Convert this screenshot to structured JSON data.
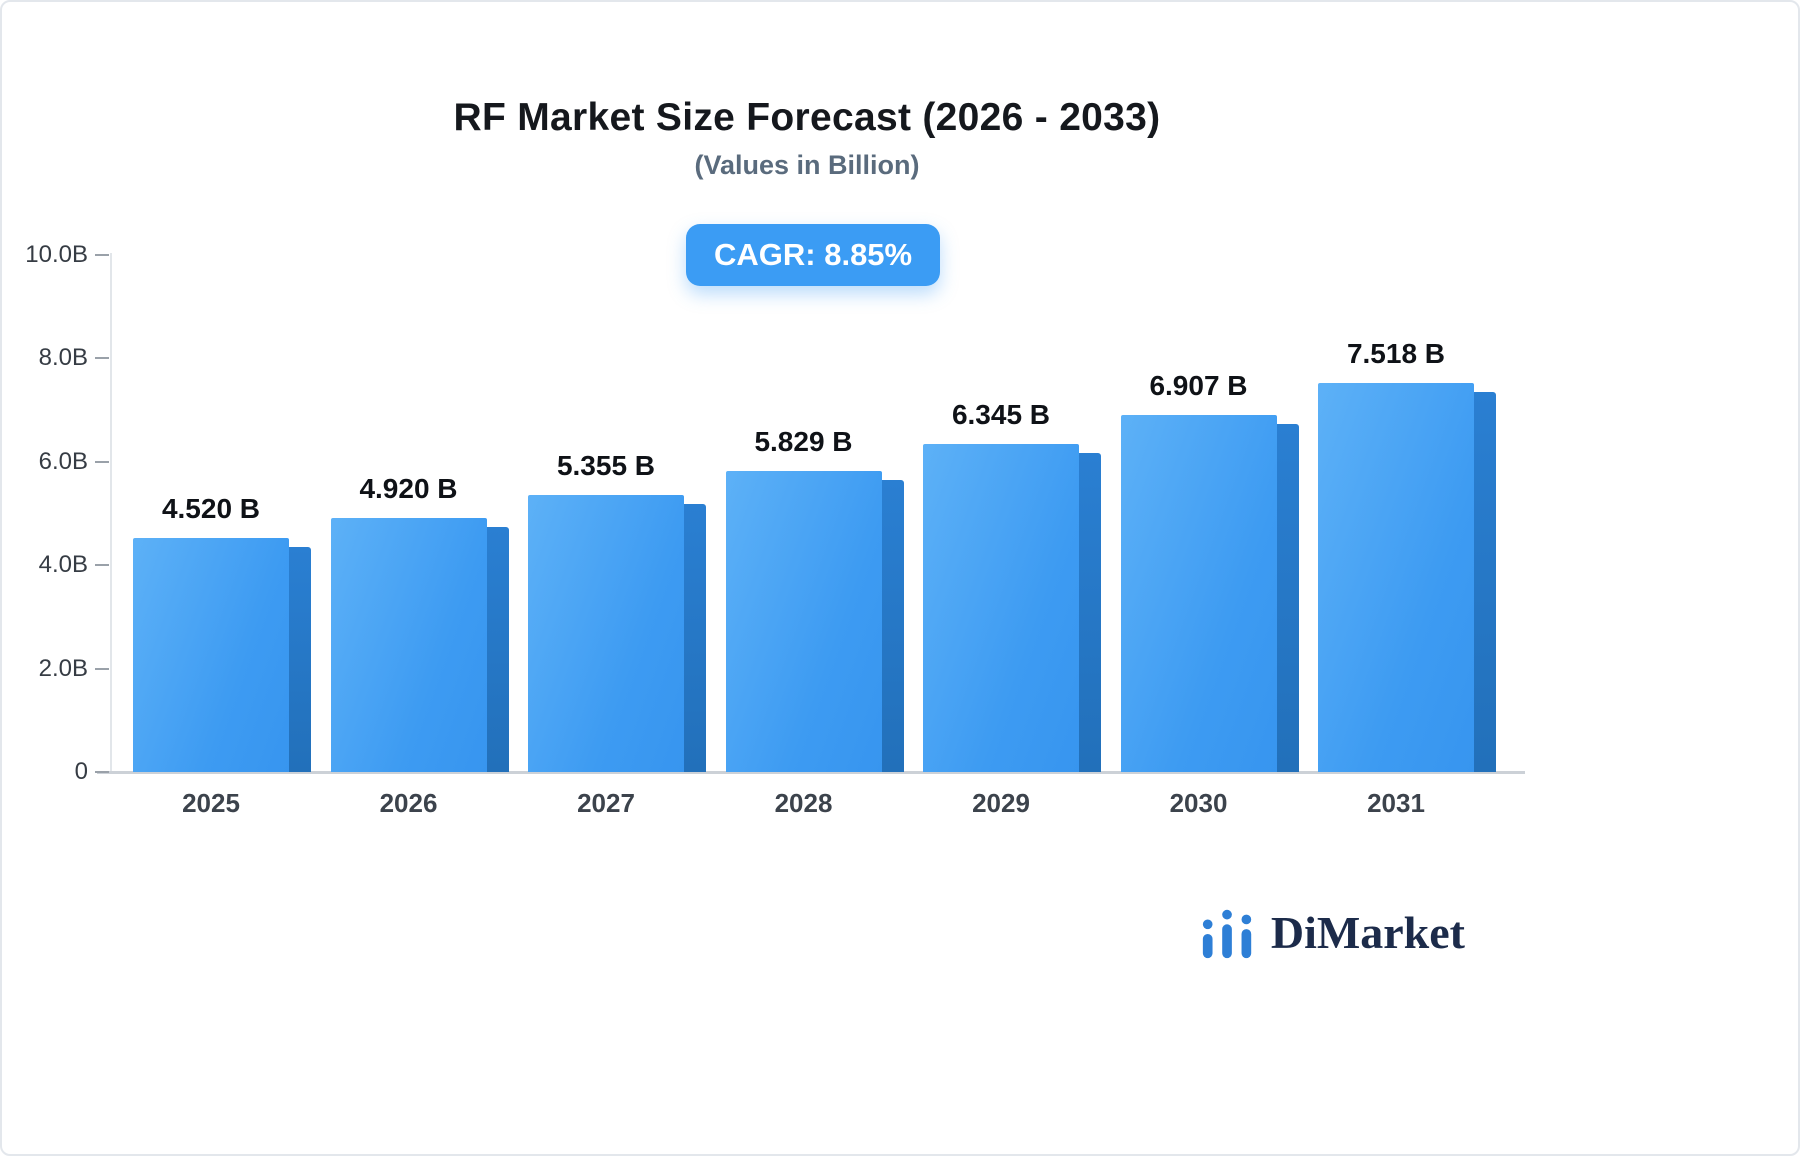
{
  "chart": {
    "title": "RF Market Size Forecast (2026 - 2033)",
    "subtitle": "(Values in Billion)",
    "cagr_label": "CAGR: 8.85%"
  },
  "chart_data": {
    "type": "bar",
    "title": "RF Market Size Forecast (2026 - 2033)",
    "subtitle": "(Values in Billion)",
    "annotation": "CAGR: 8.85%",
    "categories": [
      "2025",
      "2026",
      "2027",
      "2028",
      "2029",
      "2030",
      "2031"
    ],
    "values": [
      4.52,
      4.92,
      5.355,
      5.829,
      6.345,
      6.907,
      7.518
    ],
    "value_labels": [
      "4.520 B",
      "4.920 B",
      "5.355 B",
      "5.829 B",
      "6.345 B",
      "6.907 B",
      "7.518 B"
    ],
    "xlabel": "",
    "ylabel": "",
    "ylim": [
      0,
      10
    ],
    "y_ticks": [
      {
        "value": 10,
        "label": "10.0B"
      },
      {
        "value": 8,
        "label": "8.0B"
      },
      {
        "value": 6,
        "label": "6.0B"
      },
      {
        "value": 4,
        "label": "4.0B"
      },
      {
        "value": 2,
        "label": "2.0B"
      },
      {
        "value": 0,
        "label": "0"
      }
    ],
    "grid": false,
    "legend": false,
    "bar_color": "#3d9bf2",
    "bar_side_color": "#2270ba"
  },
  "branding": {
    "logo_text": "DiMarket",
    "logo_icon": "bar-chart-icon",
    "logo_color": "#2e7fd6"
  },
  "colors": {
    "accent_blue": "#3b9cf4",
    "badge_bg": "#3b9cf4",
    "badge_text": "#ffffff",
    "title_text": "#15181d",
    "subtitle_text": "#5a6b7d",
    "axis_label": "#363c44",
    "value_label": "#0f1217",
    "axis_line": "#ccd1d7"
  }
}
